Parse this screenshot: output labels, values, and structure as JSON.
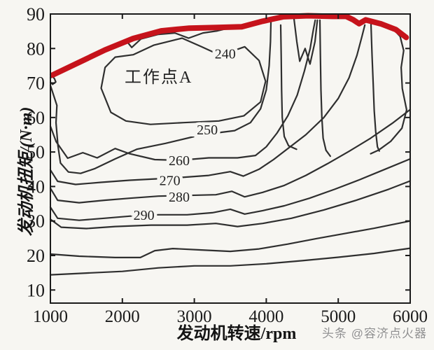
{
  "page": {
    "background": "#f7f6f2"
  },
  "colors": {
    "contour_line": "#2f2f2f",
    "wot_curve": "#c6131b",
    "axis": "#1b1b1b",
    "tick_label": "#1b1b1b",
    "background": "#f7f6f2",
    "watermark": "#8f8f8f"
  },
  "watermark": {
    "text": "头条 @容济点火器"
  },
  "chart_data": {
    "type": "contour",
    "title": "",
    "xlabel": "发动机转速/rpm",
    "ylabel": "发动机扭矩/(N·m)",
    "xlim": [
      1000,
      6000
    ],
    "ylim": [
      6.2,
      90
    ],
    "x_ticks": [
      1000,
      2000,
      3000,
      4000,
      5000,
      6000
    ],
    "y_ticks": [
      10,
      20,
      30,
      40,
      50,
      60,
      70,
      80,
      90
    ],
    "grid": false,
    "annotation": {
      "text": "工作点A",
      "x": 2600,
      "y": 73.5
    },
    "wot_curve": {
      "name": "full-load-torque-curve",
      "color": "#c6131b",
      "points": [
        [
          1030,
          72.3
        ],
        [
          1370,
          75.7
        ],
        [
          1760,
          79.6
        ],
        [
          2150,
          82.9
        ],
        [
          2540,
          85.1
        ],
        [
          2930,
          85.9
        ],
        [
          3320,
          86.1
        ],
        [
          3660,
          86.3
        ],
        [
          3950,
          87.9
        ],
        [
          4240,
          89.2
        ],
        [
          4580,
          89.5
        ],
        [
          4920,
          89.3
        ],
        [
          5110,
          89.3
        ],
        [
          5210,
          88.3
        ],
        [
          5290,
          87.2
        ],
        [
          5380,
          88.3
        ],
        [
          5600,
          87.1
        ],
        [
          5800,
          85.5
        ],
        [
          5945,
          83.2
        ]
      ]
    },
    "contour_labels": [
      {
        "text": "240",
        "x": 3430,
        "y": 78.5
      },
      {
        "text": "250",
        "x": 3180,
        "y": 56.5
      },
      {
        "text": "260",
        "x": 2790,
        "y": 47.6
      },
      {
        "text": "270",
        "x": 2660,
        "y": 41.8
      },
      {
        "text": "280",
        "x": 2790,
        "y": 37.0
      },
      {
        "text": "290",
        "x": 2300,
        "y": 31.8
      }
    ],
    "contours": [
      {
        "name": "outer-envelope",
        "level": null,
        "closed": false,
        "points": [
          [
            1000,
            71.5
          ],
          [
            1320,
            75
          ],
          [
            1710,
            79
          ],
          [
            2050,
            82.4
          ],
          [
            2130,
            80.3
          ],
          [
            2260,
            82.8
          ],
          [
            2500,
            84.1
          ],
          [
            2730,
            84.5
          ],
          [
            2920,
            83
          ],
          [
            3120,
            84.5
          ],
          [
            3320,
            85.1
          ],
          [
            3560,
            86.3
          ],
          [
            3820,
            87.5
          ],
          [
            4040,
            88.7
          ],
          [
            4385,
            89
          ],
          [
            4680,
            89.2
          ],
          [
            4970,
            89
          ],
          [
            5180,
            88.7
          ],
          [
            5280,
            86.7
          ],
          [
            5410,
            88.2
          ],
          [
            5630,
            87.3
          ],
          [
            5770,
            85.5
          ],
          [
            5860,
            83.5
          ],
          [
            5910,
            79.4
          ],
          [
            5875,
            74.5
          ],
          [
            5890,
            68.4
          ],
          [
            5950,
            62.2
          ],
          [
            5885,
            56.9
          ],
          [
            5730,
            53.1
          ],
          [
            5565,
            50.6
          ],
          [
            5450,
            49.5
          ]
        ]
      },
      {
        "name": "island-240",
        "level": 240,
        "closed": true,
        "points": [
          [
            1760,
            74.5
          ],
          [
            1900,
            77.5
          ],
          [
            2150,
            78.2
          ],
          [
            2440,
            81
          ],
          [
            2830,
            83
          ],
          [
            3100,
            80.5
          ],
          [
            3260,
            79
          ],
          [
            3440,
            78.6
          ],
          [
            3700,
            80.5
          ],
          [
            3900,
            76.5
          ],
          [
            3990,
            70.5
          ],
          [
            3920,
            64.5
          ],
          [
            3690,
            60.5
          ],
          [
            3340,
            59
          ],
          [
            2850,
            58.5
          ],
          [
            2390,
            58
          ],
          [
            2050,
            59
          ],
          [
            1840,
            61.5
          ],
          [
            1705,
            68.5
          ]
        ]
      },
      {
        "name": "eye-left-axis",
        "level": null,
        "closed": false,
        "points": [
          [
            1000,
            72.5
          ],
          [
            1055,
            71.3
          ],
          [
            1075,
            70.3
          ],
          [
            1030,
            69.6
          ],
          [
            1000,
            70.2
          ]
        ]
      },
      {
        "name": "ring-250",
        "level": 250,
        "closed": false,
        "points": [
          [
            1000,
            69.3
          ],
          [
            1090,
            63.5
          ],
          [
            1078,
            58.5
          ],
          [
            1105,
            51.8
          ],
          [
            1140,
            46.8
          ],
          [
            1250,
            44.2
          ],
          [
            1420,
            43.8
          ],
          [
            1620,
            45.2
          ],
          [
            1900,
            48
          ],
          [
            2200,
            50.8
          ],
          [
            2600,
            52.5
          ],
          [
            3000,
            54.5
          ],
          [
            3300,
            55.5
          ],
          [
            3560,
            56.2
          ],
          [
            3780,
            58.5
          ],
          [
            3920,
            62.5
          ],
          [
            4000,
            68
          ],
          [
            4040,
            75
          ],
          [
            4058,
            82
          ],
          [
            4065,
            88.3
          ]
        ]
      },
      {
        "name": "finger-down-1",
        "level": null,
        "closed": false,
        "points": [
          [
            4200,
            86.8
          ],
          [
            4207,
            78
          ],
          [
            4213,
            68
          ],
          [
            4222,
            60
          ],
          [
            4250,
            54.5
          ],
          [
            4310,
            51.8
          ],
          [
            4420,
            50.8
          ]
        ]
      },
      {
        "name": "ring-260",
        "level": 260,
        "closed": false,
        "points": [
          [
            1000,
            57.5
          ],
          [
            1080,
            53
          ],
          [
            1240,
            48.2
          ],
          [
            1450,
            49.8
          ],
          [
            1650,
            48.3
          ],
          [
            1900,
            51
          ],
          [
            2100,
            49.5
          ],
          [
            2450,
            47.8
          ],
          [
            2790,
            47.6
          ],
          [
            3200,
            48.3
          ],
          [
            3600,
            48.3
          ],
          [
            3850,
            49
          ],
          [
            4000,
            51.5
          ],
          [
            4150,
            55.5
          ],
          [
            4300,
            60.5
          ],
          [
            4430,
            66.5
          ],
          [
            4530,
            73.5
          ],
          [
            4610,
            80
          ],
          [
            4655,
            85.5
          ],
          [
            4680,
            88.2
          ]
        ]
      },
      {
        "name": "finger-w",
        "level": null,
        "closed": false,
        "points": [
          [
            4385,
            88.6
          ],
          [
            4424,
            82
          ],
          [
            4465,
            76.3
          ],
          [
            4540,
            80
          ],
          [
            4608,
            75.5
          ],
          [
            4677,
            82
          ],
          [
            4710,
            88.2
          ]
        ]
      },
      {
        "name": "finger-down-2",
        "level": null,
        "closed": false,
        "points": [
          [
            4745,
            88.2
          ],
          [
            4752,
            78
          ],
          [
            4760,
            68
          ],
          [
            4772,
            60
          ],
          [
            4790,
            54
          ],
          [
            4830,
            50.5
          ],
          [
            4890,
            48.8
          ]
        ]
      },
      {
        "name": "ring-270",
        "level": 270,
        "closed": false,
        "points": [
          [
            1000,
            44.8
          ],
          [
            1100,
            41.5
          ],
          [
            1350,
            40.6
          ],
          [
            1700,
            41.2
          ],
          [
            2100,
            41.8
          ],
          [
            2450,
            42.2
          ],
          [
            2800,
            42.6
          ],
          [
            3200,
            43.2
          ],
          [
            3500,
            44.3
          ],
          [
            3680,
            43
          ],
          [
            3900,
            45
          ],
          [
            4100,
            47.8
          ],
          [
            4300,
            51
          ],
          [
            4550,
            55
          ],
          [
            4800,
            60
          ],
          [
            5000,
            65.5
          ],
          [
            5150,
            71.5
          ],
          [
            5260,
            78
          ],
          [
            5330,
            83.5
          ],
          [
            5370,
            86.8
          ]
        ]
      },
      {
        "name": "finger-down-3",
        "level": null,
        "closed": false,
        "points": [
          [
            5455,
            87
          ],
          [
            5470,
            78
          ],
          [
            5485,
            70
          ],
          [
            5500,
            62
          ],
          [
            5520,
            56
          ],
          [
            5545,
            51.5
          ],
          [
            5570,
            50.3
          ]
        ]
      },
      {
        "name": "ring-280",
        "level": 280,
        "closed": false,
        "points": [
          [
            1000,
            39.5
          ],
          [
            1100,
            36
          ],
          [
            1400,
            35.3
          ],
          [
            1750,
            36
          ],
          [
            2100,
            36.6
          ],
          [
            2500,
            37.2
          ],
          [
            2900,
            37.4
          ],
          [
            3300,
            37.6
          ],
          [
            3520,
            38.6
          ],
          [
            3700,
            37
          ],
          [
            3950,
            38.3
          ],
          [
            4250,
            40.3
          ],
          [
            4550,
            43.2
          ],
          [
            4850,
            46.6
          ],
          [
            5150,
            50.2
          ],
          [
            5450,
            54
          ],
          [
            5750,
            58.3
          ],
          [
            6000,
            62.3
          ]
        ]
      },
      {
        "name": "ring-290",
        "level": 290,
        "closed": false,
        "points": [
          [
            1000,
            34
          ],
          [
            1100,
            30.8
          ],
          [
            1400,
            30.2
          ],
          [
            1750,
            30.8
          ],
          [
            2100,
            31.4
          ],
          [
            2500,
            31.8
          ],
          [
            2900,
            31.8
          ],
          [
            3250,
            32.4
          ],
          [
            3500,
            33.4
          ],
          [
            3700,
            32
          ],
          [
            3950,
            33
          ],
          [
            4250,
            34.4
          ],
          [
            4600,
            36.6
          ],
          [
            4950,
            39.2
          ],
          [
            5300,
            42
          ],
          [
            5650,
            45
          ],
          [
            6000,
            48
          ]
        ]
      },
      {
        "name": "ring-295-unlabeled",
        "level": null,
        "closed": false,
        "points": [
          [
            1000,
            30.5
          ],
          [
            1150,
            28.2
          ],
          [
            1500,
            27.8
          ],
          [
            1900,
            28.4
          ],
          [
            2400,
            28.8
          ],
          [
            2900,
            28.8
          ],
          [
            3300,
            29.3
          ],
          [
            3600,
            28.4
          ],
          [
            3950,
            29.3
          ],
          [
            4350,
            30.8
          ],
          [
            4800,
            33.2
          ],
          [
            5250,
            36
          ],
          [
            5700,
            39.2
          ],
          [
            6000,
            41.6
          ]
        ]
      },
      {
        "name": "ring-300-unlabeled",
        "level": null,
        "closed": false,
        "points": [
          [
            1000,
            20.4
          ],
          [
            1400,
            19.8
          ],
          [
            1900,
            19.4
          ],
          [
            2250,
            19.4
          ],
          [
            2450,
            21.4
          ],
          [
            2700,
            22
          ],
          [
            3100,
            21.6
          ],
          [
            3500,
            21.2
          ],
          [
            3900,
            21.9
          ],
          [
            4300,
            23.3
          ],
          [
            4700,
            24.9
          ],
          [
            5100,
            26.4
          ],
          [
            5500,
            27.9
          ],
          [
            6000,
            30
          ]
        ]
      },
      {
        "name": "ring-310-unlabeled",
        "level": null,
        "closed": false,
        "points": [
          [
            1000,
            14.4
          ],
          [
            1500,
            14.9
          ],
          [
            2000,
            15.4
          ],
          [
            2500,
            16.4
          ],
          [
            3000,
            17
          ],
          [
            3500,
            17
          ],
          [
            4000,
            17.6
          ],
          [
            4500,
            18.5
          ],
          [
            5000,
            19.5
          ],
          [
            5500,
            20.6
          ],
          [
            6000,
            22.1
          ]
        ]
      }
    ]
  }
}
